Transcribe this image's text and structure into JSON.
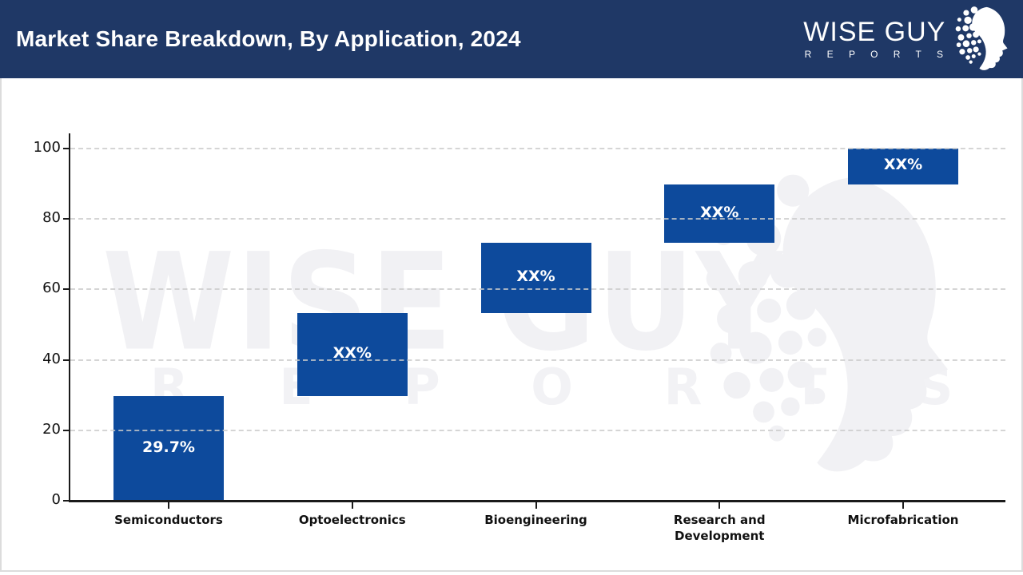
{
  "header": {
    "title": "Market Share Breakdown, By Application, 2024",
    "logo": {
      "line1": "WISE GUY",
      "line2": "R E P O R T S"
    }
  },
  "watermark": {
    "line1": "WISE GUY",
    "line2": "R E P O R T S"
  },
  "colors": {
    "header_bg": "#1f3866",
    "bar": "#0d4a9c",
    "grid": "#d9d9d9",
    "axis": "#1a1a1a",
    "bar_label_text": "#ffffff",
    "watermark": "#f1f1f4",
    "page_border": "#dcdcdc"
  },
  "chart_data": {
    "type": "bar",
    "subtype": "waterfall-cumulative",
    "title": "Market Share Breakdown, By Application, 2024",
    "categories": [
      "Semiconductors",
      "Optoelectronics",
      "Bioengineering",
      "Research and Development",
      "Microfabrication"
    ],
    "segments": [
      {
        "category": "Semiconductors",
        "label": "29.7%",
        "start": 0,
        "end": 29.7
      },
      {
        "category": "Optoelectronics",
        "label": "XX%",
        "start": 29.7,
        "end": 53.3
      },
      {
        "category": "Bioengineering",
        "label": "XX%",
        "start": 53.3,
        "end": 73.2
      },
      {
        "category": "Research and Development",
        "label": "XX%",
        "start": 73.2,
        "end": 89.8
      },
      {
        "category": "Microfabrication",
        "label": "XX%",
        "start": 89.8,
        "end": 100
      }
    ],
    "yticks": [
      0,
      20,
      40,
      60,
      80,
      100
    ],
    "ylim": [
      0,
      104
    ],
    "xlabel": "",
    "ylabel": "",
    "grid": true,
    "grid_style": "dashed",
    "legend": "none"
  }
}
